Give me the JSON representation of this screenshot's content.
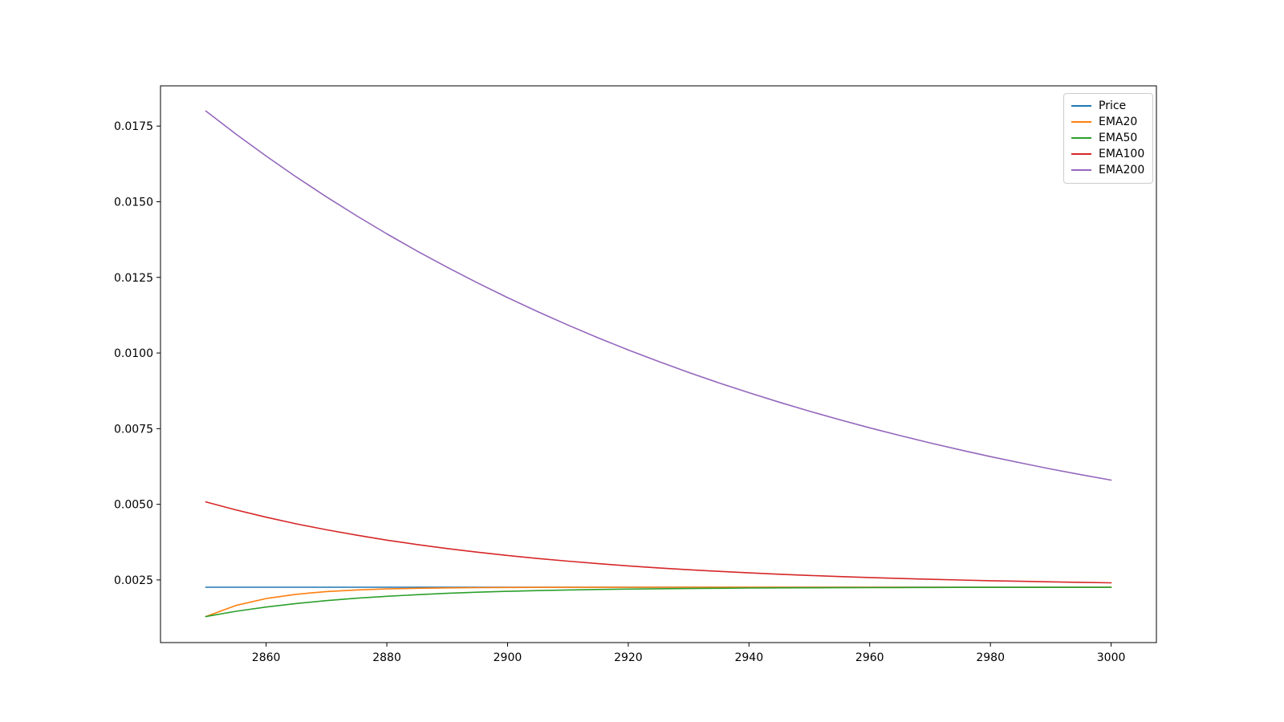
{
  "chart_data": {
    "type": "line",
    "title": "",
    "xlabel": "",
    "ylabel": "",
    "grid": false,
    "background": "#ffffff",
    "axes_color": "#000000",
    "tick_label_color": "#000000",
    "xlim": [
      2842.5,
      3007.5
    ],
    "ylim": [
      0.00043,
      0.01883
    ],
    "x_ticks": [
      2860,
      2880,
      2900,
      2920,
      2940,
      2960,
      2980,
      3000
    ],
    "x_tick_labels": [
      "2860",
      "2880",
      "2900",
      "2920",
      "2940",
      "2960",
      "2980",
      "3000"
    ],
    "y_ticks": [
      0.0025,
      0.005,
      0.0075,
      0.01,
      0.0125,
      0.015,
      0.0175
    ],
    "y_tick_labels": [
      "0.0025",
      "0.0050",
      "0.0075",
      "0.0100",
      "0.0125",
      "0.0150",
      "0.0175"
    ],
    "legend": {
      "position": "upper-right",
      "entries": [
        "Price",
        "EMA20",
        "EMA50",
        "EMA100",
        "EMA200"
      ]
    },
    "x": [
      2850,
      2855,
      2860,
      2865,
      2870,
      2875,
      2880,
      2885,
      2890,
      2895,
      2900,
      2905,
      2910,
      2915,
      2920,
      2925,
      2930,
      2935,
      2940,
      2945,
      2950,
      2955,
      2960,
      2965,
      2970,
      2975,
      2980,
      2985,
      2990,
      2995,
      3000
    ],
    "series": [
      {
        "name": "Price",
        "color": "#1f77b4",
        "values": [
          0.00226,
          0.00226,
          0.00226,
          0.00226,
          0.00226,
          0.00226,
          0.00226,
          0.00226,
          0.00226,
          0.00226,
          0.00226,
          0.00226,
          0.00226,
          0.00226,
          0.00226,
          0.00226,
          0.00226,
          0.00226,
          0.00226,
          0.00226,
          0.00226,
          0.00226,
          0.00226,
          0.00226,
          0.00226,
          0.00226,
          0.00226,
          0.00226,
          0.00226,
          0.00226,
          0.00226
        ]
      },
      {
        "name": "EMA20",
        "color": "#ff7f0e",
        "values": [
          0.00129,
          0.001657,
          0.001886,
          0.002027,
          0.002116,
          0.00217,
          0.002204,
          0.002225,
          0.002238,
          0.002247,
          0.002252,
          0.002255,
          0.002257,
          0.002258,
          0.002259,
          0.002259,
          0.00226,
          0.00226,
          0.00226,
          0.00226,
          0.00226,
          0.00226,
          0.00226,
          0.00226,
          0.00226,
          0.00226,
          0.00226,
          0.00226,
          0.00226,
          0.00226,
          0.00226
        ]
      },
      {
        "name": "EMA50",
        "color": "#2ca02c",
        "values": [
          0.00129,
          0.001463,
          0.001605,
          0.001721,
          0.001817,
          0.001896,
          0.001961,
          0.002014,
          0.002058,
          0.002094,
          0.002124,
          0.002148,
          0.002168,
          0.002184,
          0.002198,
          0.002209,
          0.002218,
          0.002225,
          0.002232,
          0.002237,
          0.002241,
          0.002244,
          0.002247,
          0.002249,
          0.002251,
          0.002253,
          0.002254,
          0.002255,
          0.002256,
          0.002257,
          0.002257
        ]
      },
      {
        "name": "EMA100",
        "color": "#d62728",
        "values": [
          0.00508,
          0.004814,
          0.004573,
          0.004355,
          0.004158,
          0.003979,
          0.003817,
          0.00367,
          0.003537,
          0.003417,
          0.003308,
          0.003209,
          0.00312,
          0.003038,
          0.002965,
          0.002898,
          0.002838,
          0.002784,
          0.002734,
          0.00269,
          0.002649,
          0.002613,
          0.002579,
          0.002549,
          0.002522,
          0.002497,
          0.002475,
          0.002455,
          0.002436,
          0.00242,
          0.002405
        ]
      },
      {
        "name": "EMA200",
        "color": "#9467bd",
        "values": [
          0.018,
          0.017236,
          0.016509,
          0.015818,
          0.01516,
          0.014534,
          0.013938,
          0.013371,
          0.012832,
          0.012319,
          0.01183,
          0.011366,
          0.010924,
          0.010503,
          0.010103,
          0.009723,
          0.00936,
          0.009016,
          0.008688,
          0.008376,
          0.008079,
          0.007797,
          0.007528,
          0.007272,
          0.007029,
          0.006798,
          0.006577,
          0.006368,
          0.006168,
          0.005979,
          0.005798
        ]
      }
    ]
  }
}
